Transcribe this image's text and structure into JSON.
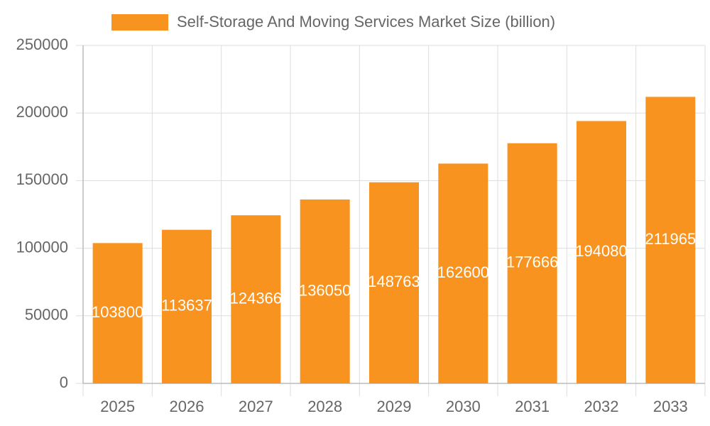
{
  "chart_data": {
    "type": "bar",
    "legend_label": "Self-Storage And Moving Services Market Size (billion)",
    "categories": [
      "2025",
      "2026",
      "2027",
      "2028",
      "2029",
      "2030",
      "2031",
      "2032",
      "2033"
    ],
    "values": [
      103800,
      113637,
      124366,
      136050,
      148763,
      162600,
      177666,
      194080,
      211965
    ],
    "color": "#f7931e",
    "ylim": [
      0,
      250000
    ],
    "yticks": [
      0,
      50000,
      100000,
      150000,
      200000,
      250000
    ],
    "grid": true
  }
}
